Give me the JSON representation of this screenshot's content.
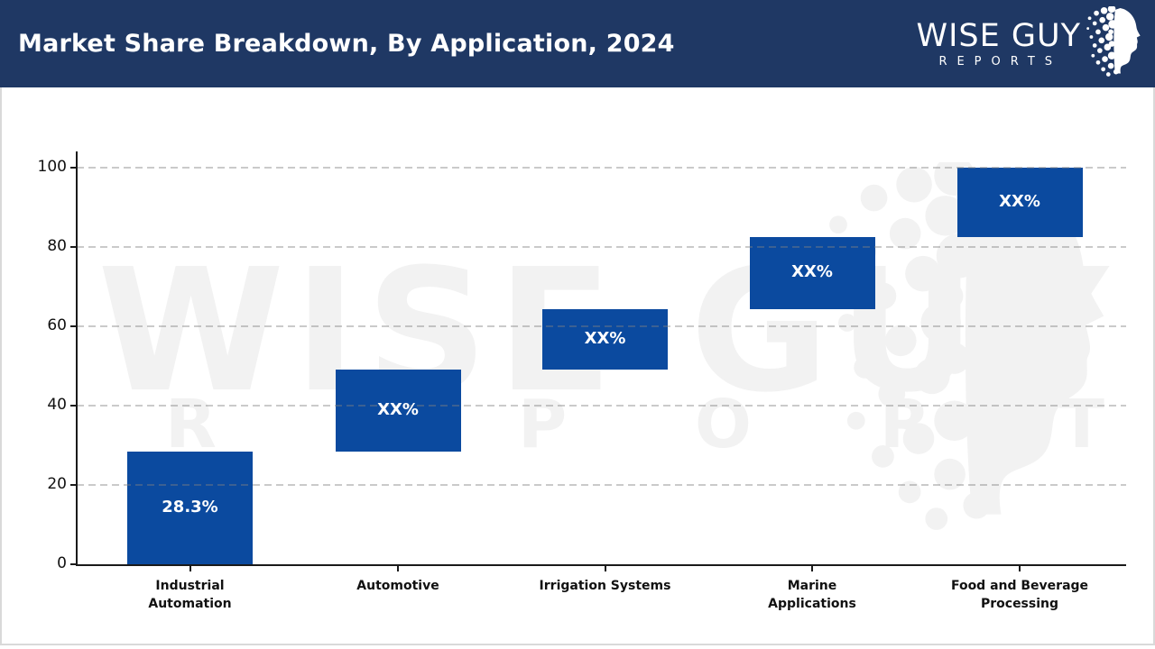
{
  "header": {
    "title": "Market Share Breakdown, By Application, 2024",
    "logo": {
      "wordmark": "WISE GUY",
      "subtext": "REPORTS"
    }
  },
  "watermark": {
    "wordmark": "WISE GUY",
    "subtext": "R E P O R T S"
  },
  "colors": {
    "header_bg": "#1F3864",
    "bar_fill": "#0B4A9F",
    "bar_label_text": "#FFFFFF",
    "axis": "#1A1A1A",
    "tick_label": "#111111",
    "gridline": "#8C8C8C",
    "watermark": "#F2F2F2",
    "background": "#FFFFFF"
  },
  "chart_data": {
    "type": "bar",
    "subtype": "waterfall",
    "title": "Market Share Breakdown, By Application, 2024",
    "categories": [
      "Industrial Automation",
      "Automotive",
      "Irrigation Systems",
      "Marine Applications",
      "Food and Beverage Processing"
    ],
    "xtick_labels": [
      "Industrial\nAutomation",
      "Automotive",
      "Irrigation Systems",
      "Marine\nApplications",
      "Food and Beverage\nProcessing"
    ],
    "segment_start": [
      0,
      28.3,
      49.1,
      64.3,
      82.4
    ],
    "segment_end": [
      28.3,
      49.1,
      64.3,
      82.4,
      100
    ],
    "bar_labels": [
      "28.3%",
      "XX%",
      "XX%",
      "XX%",
      "XX%"
    ],
    "ylim": [
      0,
      100
    ],
    "yticks": [
      0,
      20,
      40,
      60,
      80,
      100
    ],
    "xlabel": "",
    "ylabel": "",
    "grid": "horizontal-dashed",
    "legend": "none"
  }
}
